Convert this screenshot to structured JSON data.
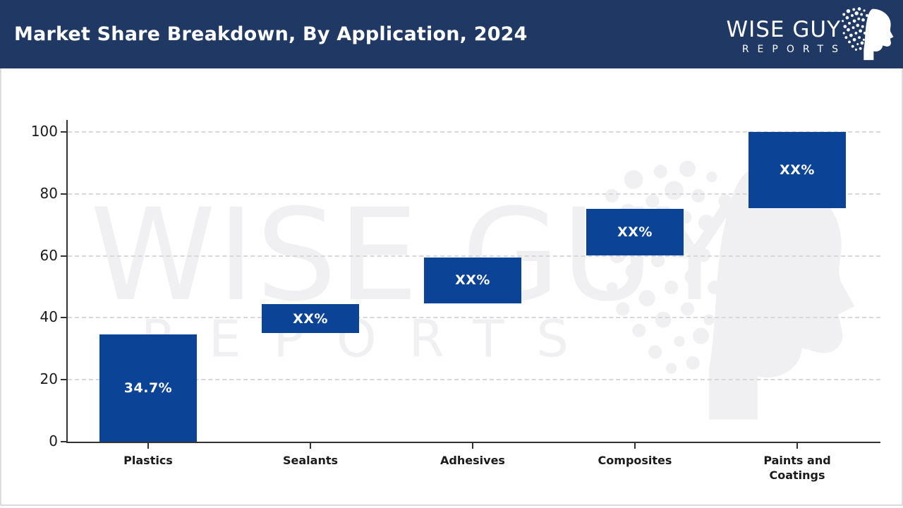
{
  "header": {
    "title": "Market Share Breakdown, By Application, 2024",
    "brand": {
      "wordmark": "WISE GUY",
      "sub": "REPORTS"
    },
    "background": "#1f3864"
  },
  "watermark": {
    "wordmark": "WISE GUY",
    "sub": "REPORTS"
  },
  "chart_data": {
    "type": "bar",
    "subtype": "waterfall",
    "title": "Market Share Breakdown, By Application, 2024",
    "categories": [
      {
        "label": "Plastics",
        "lines": [
          "Plastics"
        ]
      },
      {
        "label": "Sealants",
        "lines": [
          "Sealants"
        ]
      },
      {
        "label": "Adhesives",
        "lines": [
          "Adhesives"
        ]
      },
      {
        "label": "Composites",
        "lines": [
          "Composites"
        ]
      },
      {
        "label": "Paints and Coatings",
        "lines": [
          "Paints and",
          "Coatings"
        ]
      }
    ],
    "segments": [
      {
        "category": "Plastics",
        "start": 0,
        "end": 34.7,
        "label": "34.7%"
      },
      {
        "category": "Sealants",
        "start": 35.0,
        "end": 44.4,
        "label": "XX%"
      },
      {
        "category": "Adhesives",
        "start": 44.7,
        "end": 59.4,
        "label": "XX%"
      },
      {
        "category": "Composites",
        "start": 60.2,
        "end": 75.1,
        "label": "XX%"
      },
      {
        "category": "Paints and Coatings",
        "start": 75.3,
        "end": 100,
        "label": "XX%"
      }
    ],
    "ylim": [
      0,
      100
    ],
    "yticks": [
      0,
      20,
      40,
      60,
      80,
      100
    ],
    "ytick_labels": [
      "0",
      "20",
      "40",
      "60",
      "80",
      "100"
    ],
    "grid": "horizontal-dashed",
    "legend": "none",
    "bar_color": "#0b4397",
    "bar_label_color": "#ffffff",
    "grid_color": "#d8d8d8",
    "axis_color": "#333333",
    "tick_text_color": "#1a1a1a"
  }
}
